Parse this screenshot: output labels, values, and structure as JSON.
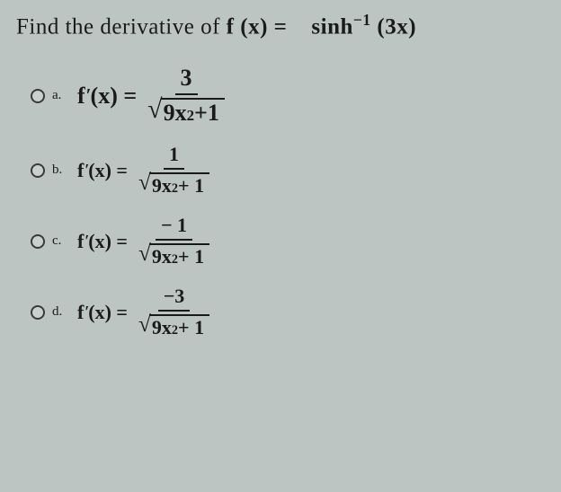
{
  "question": {
    "prefix": "Find the derivative of ",
    "fn_bold": "f (x) =",
    "rhs_func": "sinh",
    "rhs_exp": "−1",
    "rhs_arg": "(3x)"
  },
  "options": [
    {
      "key": "a",
      "label": "a.",
      "lhs": "f",
      "lhs_prime": "′",
      "lhs_arg": "(x) =",
      "num": "3",
      "den_coef": "9x",
      "den_exp": "2",
      "den_tail": "+1",
      "size": "large"
    },
    {
      "key": "b",
      "label": "b.",
      "lhs": "f",
      "lhs_prime": "′",
      "lhs_arg": "(x) =",
      "num": "1",
      "den_coef": "9x",
      "den_exp": "2",
      "den_tail": " + 1",
      "size": "small"
    },
    {
      "key": "c",
      "label": "c.",
      "lhs": "f",
      "lhs_prime": "′",
      "lhs_arg": "(x) =",
      "num": "− 1",
      "den_coef": "9x",
      "den_exp": "2",
      "den_tail": " + 1",
      "size": "small"
    },
    {
      "key": "d",
      "label": "d.",
      "lhs": "f",
      "lhs_prime": "′",
      "lhs_arg": "(x) =",
      "num": "−3",
      "den_coef": "9x",
      "den_exp": "2",
      "den_tail": " + 1",
      "size": "small"
    }
  ]
}
